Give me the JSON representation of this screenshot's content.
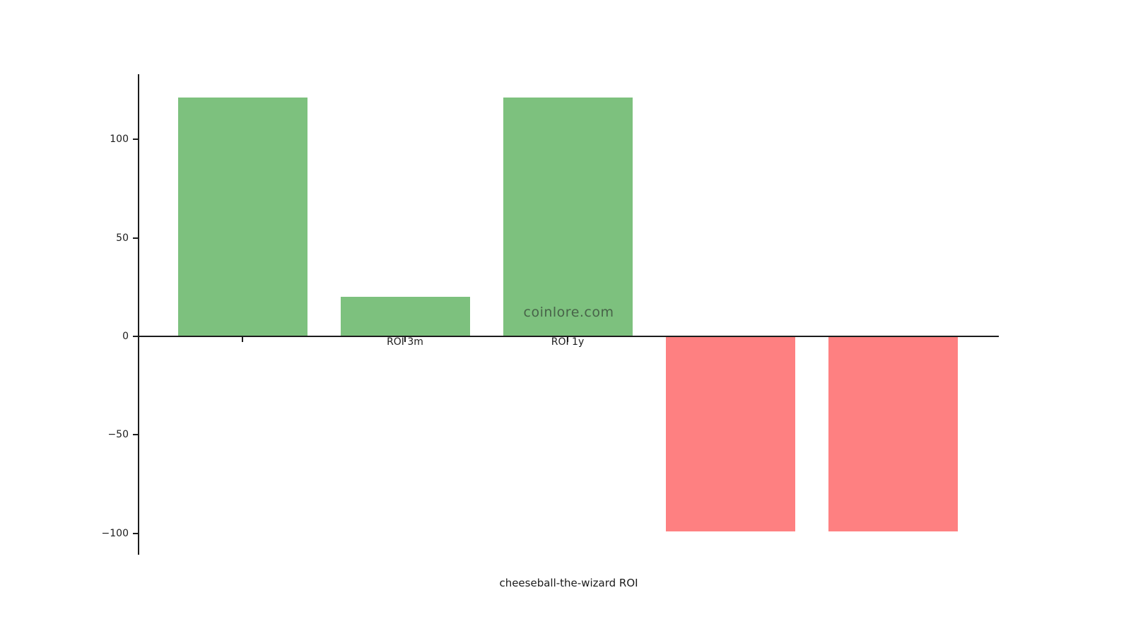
{
  "chart_data": {
    "type": "bar",
    "title": "cheeseball-the-wizard ROI",
    "watermark": "coinlore.com",
    "categories": [
      "",
      "ROI 3m",
      "ROI 1y",
      "",
      ""
    ],
    "values": [
      121,
      20,
      121,
      -99,
      -99
    ],
    "bar_colors": [
      "#7dc17e",
      "#7dc17e",
      "#7dc17e",
      "#fe8081",
      "#fe8081"
    ],
    "positive_color": "#7dc17e",
    "negative_color": "#fe8081",
    "ylim": [
      -110.8,
      133
    ],
    "yticks": [
      {
        "value": 100,
        "label": "100"
      },
      {
        "value": 50,
        "label": "50"
      },
      {
        "value": 0,
        "label": "0"
      },
      {
        "value": -50,
        "label": "−50"
      },
      {
        "value": -100,
        "label": "−100"
      }
    ],
    "xticks": [
      {
        "bar_index": 0,
        "label": ""
      },
      {
        "bar_index": 1,
        "label": "ROI 3m"
      },
      {
        "bar_index": 2,
        "label": "ROI 1y"
      }
    ],
    "grid": false,
    "legend": null,
    "axis_color": "#1c1c1c",
    "background_color": "#ffffff"
  }
}
